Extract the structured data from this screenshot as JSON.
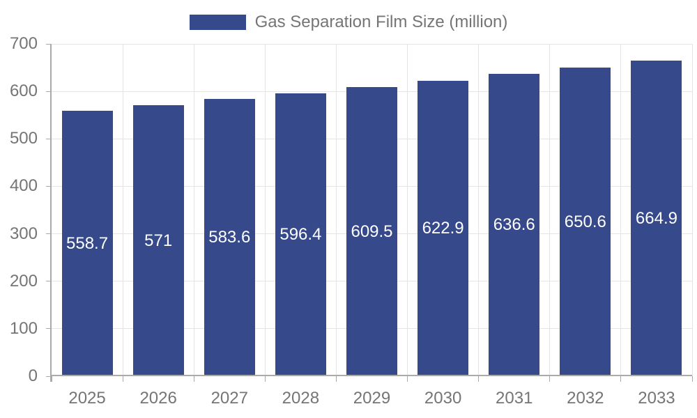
{
  "chart_data": {
    "type": "bar",
    "title": "Gas Separation Film Size (million)",
    "categories": [
      "2025",
      "2026",
      "2027",
      "2028",
      "2029",
      "2030",
      "2031",
      "2032",
      "2033"
    ],
    "values": [
      558.7,
      571,
      583.6,
      596.4,
      609.5,
      622.9,
      636.6,
      650.6,
      664.9
    ],
    "value_labels": [
      "558.7",
      "571",
      "583.6",
      "596.4",
      "609.5",
      "622.9",
      "636.6",
      "650.6",
      "664.9"
    ],
    "xlabel": "",
    "ylabel": "",
    "ylim": [
      0,
      700
    ],
    "yticks": [
      0,
      100,
      200,
      300,
      400,
      500,
      600,
      700
    ],
    "grid": true,
    "legend_position": "top-center",
    "colors": {
      "bar": "#36498B",
      "grid": "#e4e4e6",
      "axis": "#aaaaaa",
      "tick_text": "#757575",
      "value_text": "#ffffff",
      "background": "#ffffff"
    }
  }
}
